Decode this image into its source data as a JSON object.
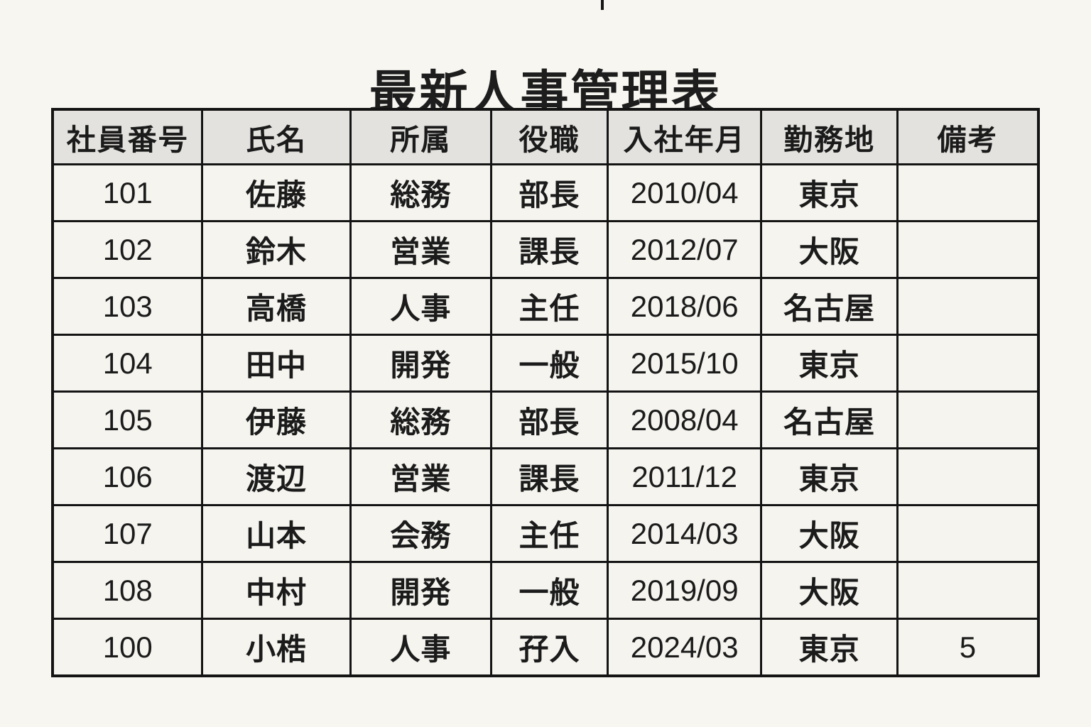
{
  "page": {
    "background_color": "#f7f6f1",
    "border_color": "#141414",
    "header_bg_color": "#e3e2de",
    "cell_bg_color": "#f5f4ef",
    "text_color": "#1b1b1b"
  },
  "title": "最新人事管理表",
  "table": {
    "columns": [
      "社員番号",
      "氏名",
      "所属",
      "役職",
      "入社年月",
      "勤務地",
      "備考"
    ],
    "column_widths_pct": [
      15.2,
      15.0,
      14.3,
      11.8,
      15.6,
      13.8,
      14.3
    ],
    "rows": [
      [
        "101",
        "佐藤",
        "総務",
        "部長",
        "2010/04",
        "東京",
        ""
      ],
      [
        "102",
        "鈴木",
        "営業",
        "課長",
        "2012/07",
        "大阪",
        ""
      ],
      [
        "103",
        "高橋",
        "人事",
        "主任",
        "2018/06",
        "名古屋",
        ""
      ],
      [
        "104",
        "田中",
        "開発",
        "一般",
        "2015/10",
        "東京",
        ""
      ],
      [
        "105",
        "伊藤",
        "総務",
        "部長",
        "2008/04",
        "名古屋",
        ""
      ],
      [
        "106",
        "渡辺",
        "営業",
        "課長",
        "2011/12",
        "東京",
        ""
      ],
      [
        "107",
        "山本",
        "会務",
        "主任",
        "2014/03",
        "大阪",
        ""
      ],
      [
        "108",
        "中村",
        "開発",
        "一般",
        "2019/09",
        "大阪",
        ""
      ],
      [
        "100",
        "小梏",
        "人事",
        "孖入",
        "2024/03",
        "東京",
        "5"
      ]
    ],
    "column_names": [
      "employee-id",
      "name",
      "department",
      "position",
      "hire-date",
      "location",
      "remarks"
    ]
  }
}
